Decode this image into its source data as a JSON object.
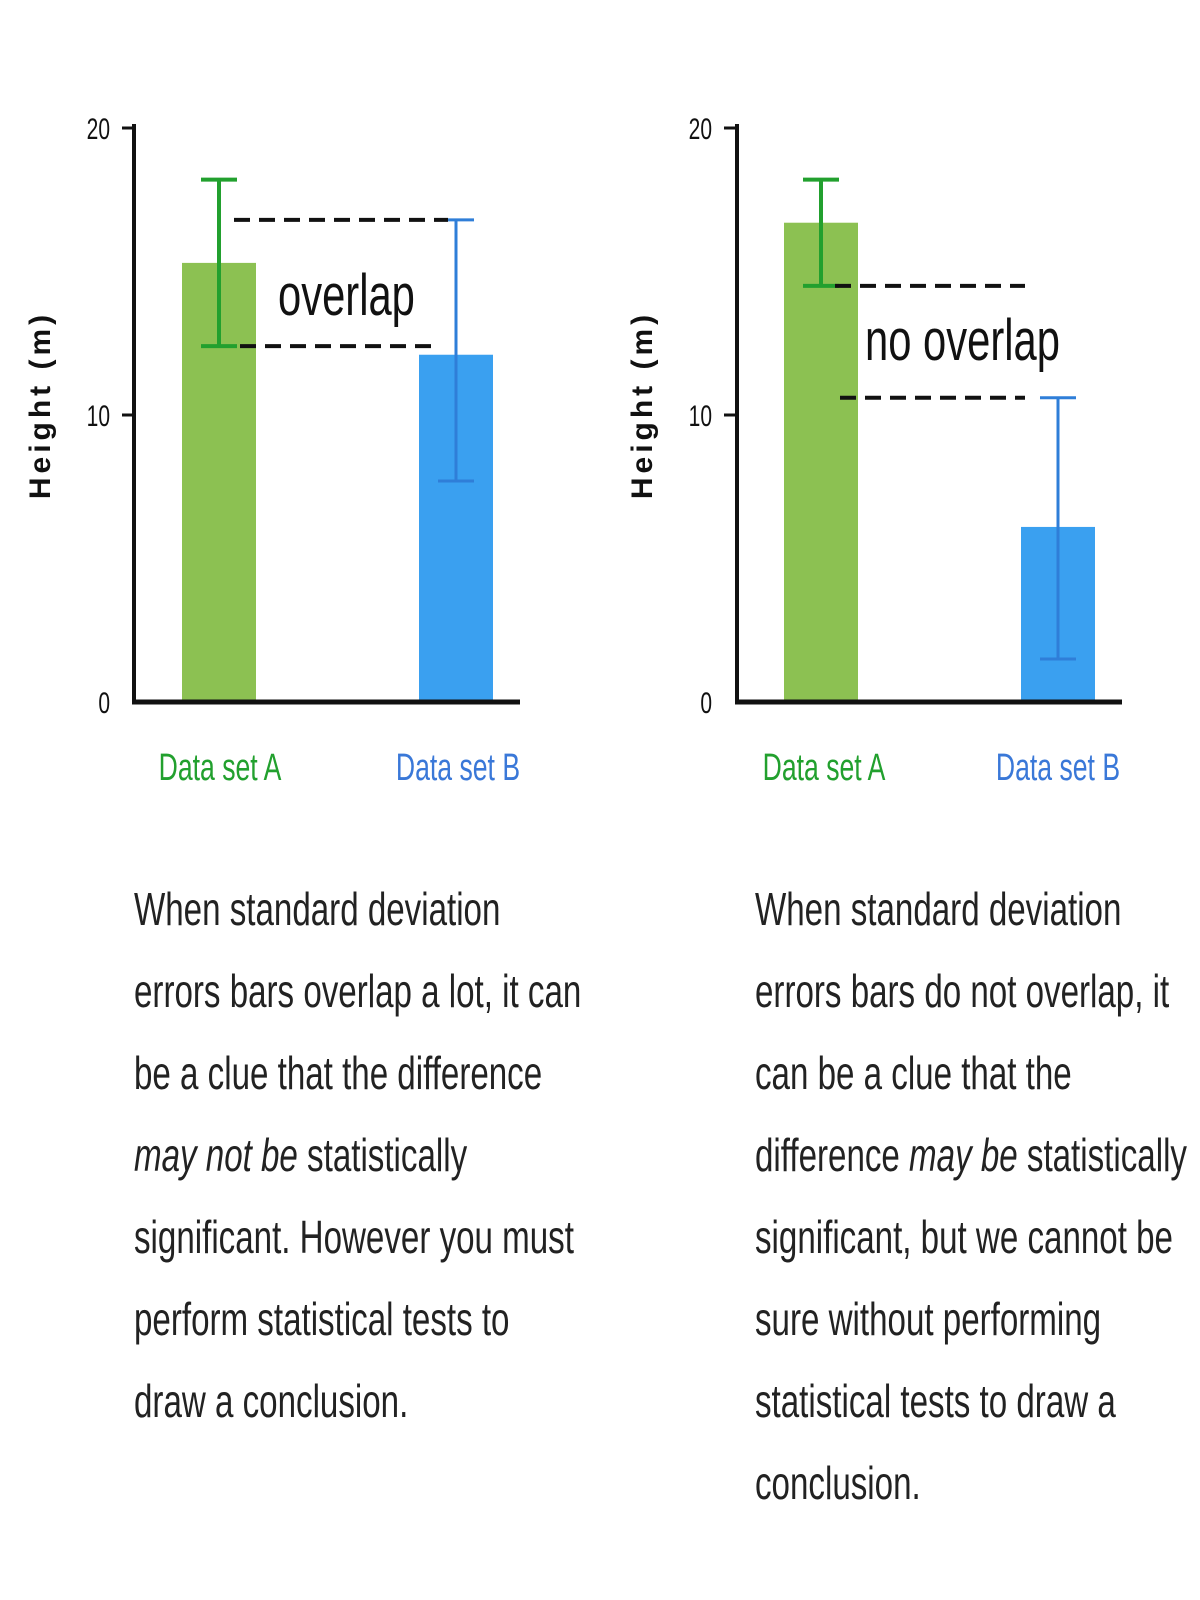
{
  "chart_data": [
    {
      "type": "bar",
      "ylabel": "Height (m)",
      "yticks": [
        "0",
        "10",
        "20"
      ],
      "ylim": [
        0,
        20
      ],
      "categories": [
        "Data set A",
        "Data set B"
      ],
      "values": [
        15.3,
        12.1
      ],
      "error": [
        [
          12.4,
          18.2
        ],
        [
          7.7,
          16.8
        ]
      ],
      "annotation": "overlap",
      "colors": {
        "a_bar": "#8cc152",
        "a_err": "#22a02e",
        "a_label": "#22a02e",
        "b_bar": "#3aa0f0",
        "b_err": "#2f7ed8",
        "b_label": "#3a78d8"
      }
    },
    {
      "type": "bar",
      "ylabel": "Height (m)",
      "yticks": [
        "0",
        "10",
        "20"
      ],
      "ylim": [
        0,
        20
      ],
      "categories": [
        "Data set A",
        "Data set B"
      ],
      "values": [
        16.7,
        6.1
      ],
      "error": [
        [
          14.5,
          18.2
        ],
        [
          1.5,
          10.6
        ]
      ],
      "annotation": "no overlap",
      "colors": {
        "a_bar": "#8cc152",
        "a_err": "#22a02e",
        "a_label": "#22a02e",
        "b_bar": "#3aa0f0",
        "b_err": "#2f7ed8",
        "b_label": "#3a78d8"
      }
    }
  ],
  "captions": {
    "left": {
      "line1": "When standard deviation",
      "line2": "errors bars overlap a lot, it can",
      "line3": "be a clue that the difference",
      "line4_italic": "may not be",
      "line4_rest": " statistically",
      "line5": "significant. However you must",
      "line6": "perform statistical tests to",
      "line7": "draw a conclusion."
    },
    "right": {
      "line1": "When standard deviation",
      "line2": "errors bars do not overlap, it",
      "line3": "can be a clue that the",
      "line4_pre": "difference ",
      "line4_italic": "may be",
      "line4_rest": " statistically",
      "line5": "significant, but we cannot be",
      "line6": "sure without performing",
      "line7": "statistical tests to draw a",
      "line8": "conclusion."
    }
  }
}
